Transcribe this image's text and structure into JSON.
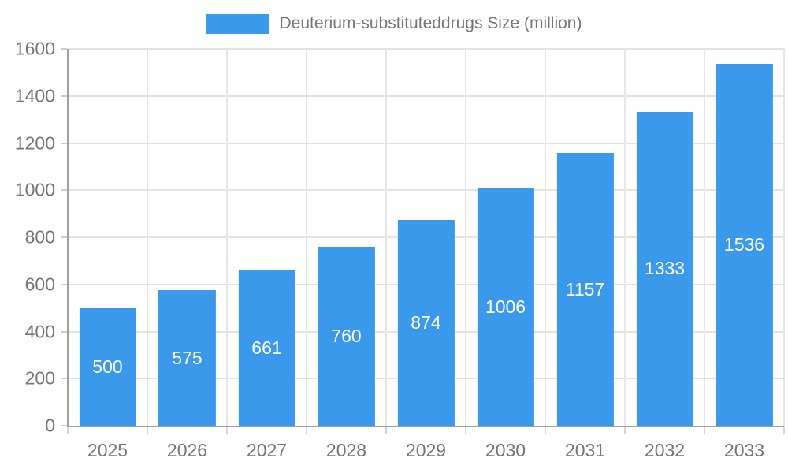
{
  "legend": {
    "items": [
      {
        "label": "Deuterium-substituteddrugs Size (million)",
        "color": "#3b99ec"
      }
    ]
  },
  "chart_data": {
    "type": "bar",
    "title": "",
    "series_name": "Deuterium-substituteddrugs Size (million)",
    "categories": [
      "2025",
      "2026",
      "2027",
      "2028",
      "2029",
      "2030",
      "2031",
      "2032",
      "2033"
    ],
    "values": [
      500,
      575,
      661,
      760,
      874,
      1006,
      1157,
      1333,
      1536
    ],
    "value_labels": [
      "500",
      "575",
      "661",
      "760",
      "874",
      "1006",
      "1157",
      "1333",
      "1536"
    ],
    "xlabel": "",
    "ylabel": "",
    "ylim": [
      0,
      1600
    ],
    "y_ticks": [
      0,
      200,
      400,
      600,
      800,
      1000,
      1200,
      1400,
      1600
    ],
    "grid": true,
    "legend_position": "top",
    "colors": {
      "bar": "#3b99ec",
      "value_label": "#ffffff",
      "axis_text": "#757575",
      "gridline": "#e3e3e3",
      "axis_line": "#9e9e9e"
    }
  }
}
